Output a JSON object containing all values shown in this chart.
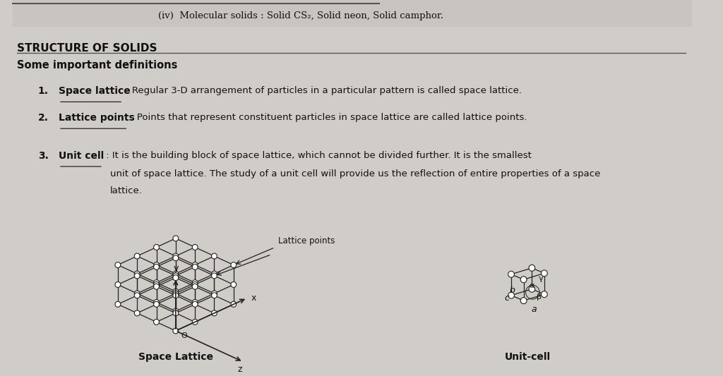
{
  "bg_color": "#d0ccc8",
  "title_top": "(iv)  Molecular solids : Solid CS₂, Solid neon, Solid camphor.",
  "section_title": "STRUCTURE OF SOLIDS",
  "subtitle": "Some important definitions",
  "definitions": [
    {
      "num": "1.",
      "term": "Space lattice",
      "sep": " : ",
      "desc": "Regular 3-D arrangement of particles in a particular pattern is called space lattice."
    },
    {
      "num": "2.",
      "term": "Lattice points",
      "sep": " : ",
      "desc": "Points that represent constituent particles in space lattice are called lattice points."
    },
    {
      "num": "3.",
      "term": "Unit cell",
      "sep": " : ",
      "desc_line1": " : It is the building block of space lattice, which cannot be divided further. It is the smallest",
      "desc_line2": "unit of space lattice. The study of a unit cell will provide us the reflection of entire properties of a space",
      "desc_line3": "lattice."
    }
  ],
  "space_lattice_label": "Space Lattice",
  "unit_cell_label": "Unit-cell",
  "lattice_points_label": "Lattice points",
  "text_color": "#111111",
  "line_color": "#222222"
}
